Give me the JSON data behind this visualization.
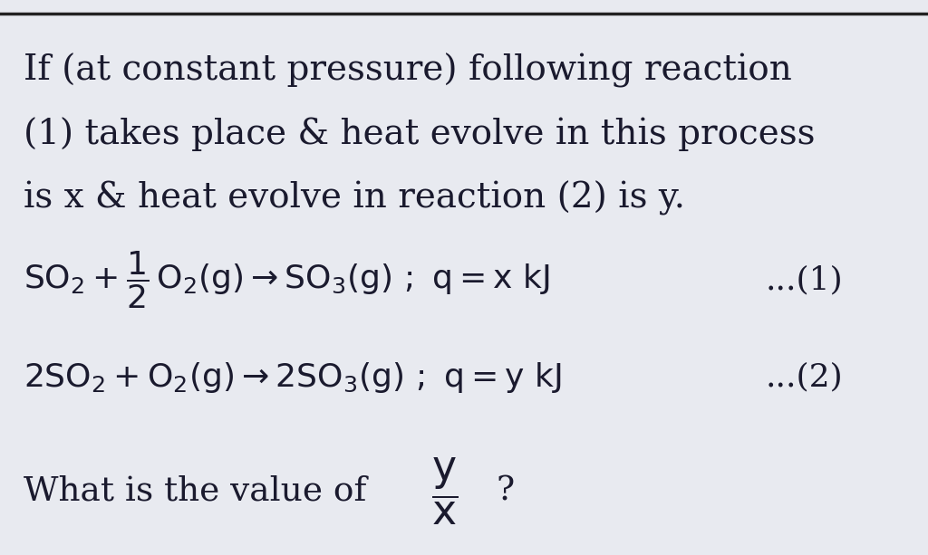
{
  "background_color": "#e8eaf0",
  "top_line_color": "#222222",
  "text_color": "#1a1a2e",
  "title_lines": [
    "If (at constant pressure) following reaction",
    "(1) takes place & heat evolve in this process",
    "is x & heat evolve in reaction (2) is y."
  ],
  "eq1_label": "...(1)",
  "eq2_label": "...(2)",
  "question_text": "What is the value of",
  "fraction_num": "y",
  "fraction_den": "x",
  "question_mark": "?",
  "title_fontsize": 28,
  "eq_fontsize": 26,
  "question_fontsize": 27
}
